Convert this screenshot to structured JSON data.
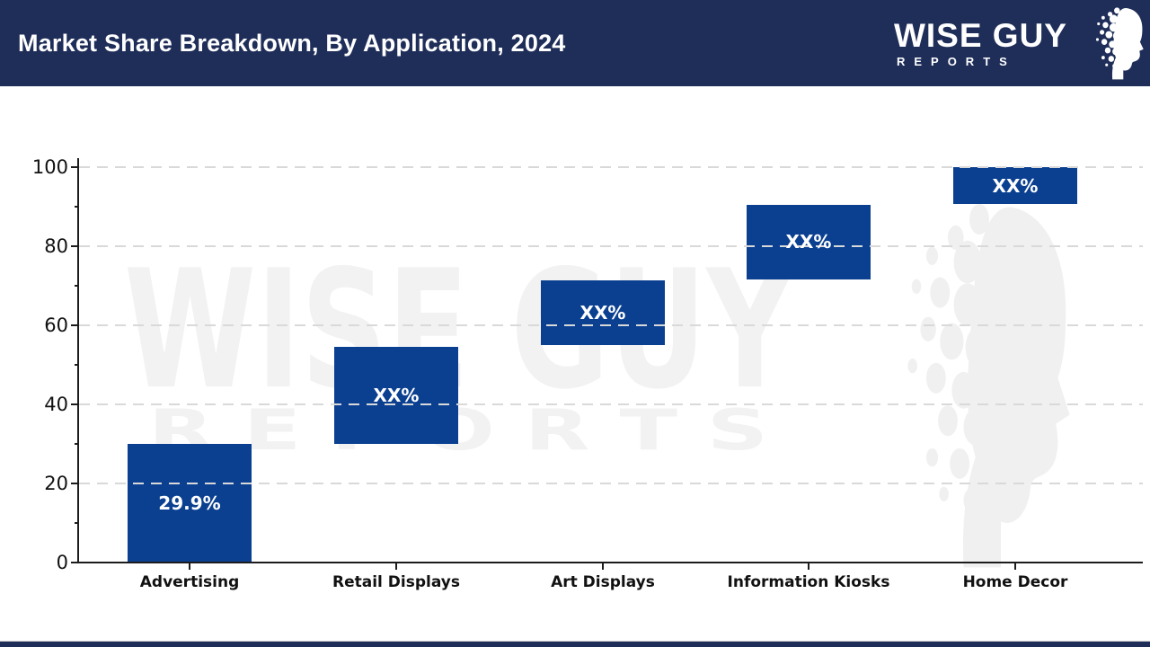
{
  "header": {
    "title": "Market Share Breakdown, By Application, 2024",
    "logo_line1": "WISE GUY",
    "logo_line2": "REPORTS"
  },
  "watermark": {
    "line1": "WISE GUY",
    "line2": "R E P O R T S"
  },
  "colors": {
    "header_bg": "#1f2e59",
    "bar": "#0b4091",
    "grid": "#d9d9d9",
    "axis": "#1c1c1c",
    "watermark": "#f2f2f2",
    "bar_label_text": "#ffffff"
  },
  "chart_data": {
    "type": "bar",
    "subtype": "waterfall-floating-bars",
    "title": "Market Share Breakdown, By Application, 2024",
    "categories": [
      "Advertising",
      "Retail Displays",
      "Art Displays",
      "Information Kiosks",
      "Home Decor"
    ],
    "segments": [
      {
        "category": "Advertising",
        "start": 0,
        "end": 29.9,
        "label": "29.9%"
      },
      {
        "category": "Retail Displays",
        "start": 29.9,
        "end": 54.5,
        "label": "XX%"
      },
      {
        "category": "Art Displays",
        "start": 54.9,
        "end": 71.4,
        "label": "XX%"
      },
      {
        "category": "Information Kiosks",
        "start": 71.7,
        "end": 90.4,
        "label": "XX%"
      },
      {
        "category": "Home Decor",
        "start": 90.6,
        "end": 100,
        "label": "XX%"
      }
    ],
    "xlabel": "",
    "ylabel": "",
    "ylim": [
      0,
      100
    ],
    "yticks": [
      0,
      20,
      40,
      60,
      80,
      100
    ],
    "grid": "horizontal dashed, drawn over bars",
    "legend": "none"
  }
}
